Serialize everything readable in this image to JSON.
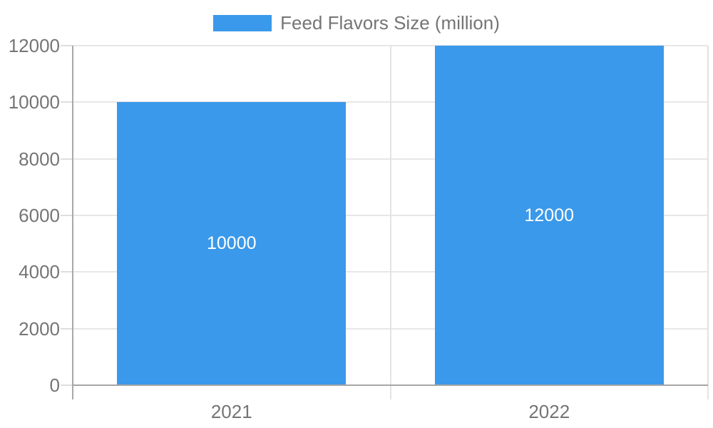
{
  "chart_data": {
    "type": "bar",
    "title": "",
    "legend": {
      "label": "Feed Flavors Size (million)",
      "position": "top"
    },
    "categories": [
      "2021",
      "2022"
    ],
    "series": [
      {
        "name": "Feed Flavors Size (million)",
        "values": [
          10000,
          12000
        ]
      }
    ],
    "value_labels": [
      "10000",
      "12000"
    ],
    "xlabel": "",
    "ylabel": "",
    "ylim": [
      0,
      12000
    ],
    "ytick_step": 2000,
    "ytick_labels": [
      "0",
      "2000",
      "4000",
      "6000",
      "8000",
      "10000",
      "12000"
    ],
    "grid": true,
    "legend_position": "top-center"
  },
  "colors": {
    "bar": "#3a99ea",
    "axis_text": "#757575",
    "value_label_text": "#ffffff",
    "gridline": "#e7e7e7",
    "tick": "#dedede",
    "axis_line": "#a8a8a8",
    "baseline": "#a6a6a6",
    "separator": "#e3e3e3",
    "background": "#ffffff"
  }
}
